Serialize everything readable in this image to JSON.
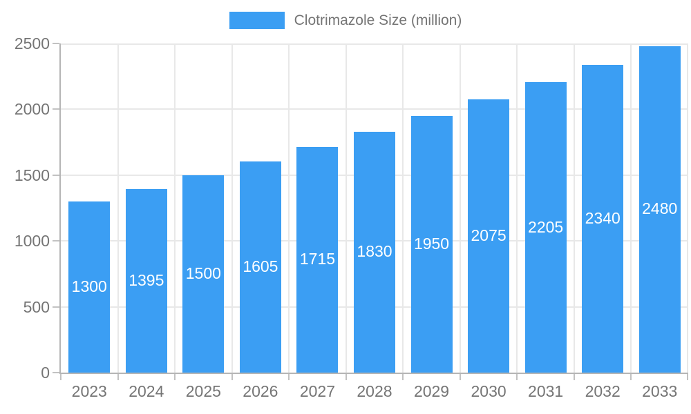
{
  "legend": {
    "label": "Clotrimazole Size (million)"
  },
  "colors": {
    "bar": "#3b9ef3",
    "value_label": "#ffffff",
    "axis_line": "#b5b5b5",
    "grid_line": "#e8e8e8",
    "tick_mark": "#c2c2c2",
    "tick_label": "#757575"
  },
  "chart_data": {
    "type": "bar",
    "title": "",
    "series_name": "Clotrimazole Size (million)",
    "categories": [
      "2023",
      "2024",
      "2025",
      "2026",
      "2027",
      "2028",
      "2029",
      "2030",
      "2031",
      "2032",
      "2033"
    ],
    "values": [
      1300,
      1395,
      1500,
      1605,
      1715,
      1830,
      1950,
      2075,
      2205,
      2340,
      2480
    ],
    "value_labels_position": "inside-center",
    "xlabel": "",
    "ylabel": "",
    "ylim": [
      0,
      2500
    ],
    "yticks": [
      0,
      500,
      1000,
      1500,
      2000,
      2500
    ],
    "grid": true,
    "legend_position": "top"
  }
}
